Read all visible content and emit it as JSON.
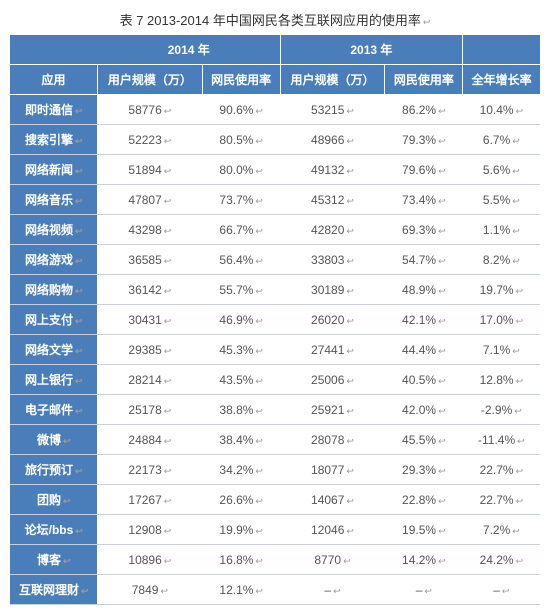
{
  "caption": "表 7    2013-2014 年中国网民各类互联网应用的使用率",
  "header": {
    "top": [
      "",
      "2014 年",
      "2013 年",
      ""
    ],
    "sub": [
      "应用",
      "用户规模（万）",
      "网民使用率",
      "用户规模（万）",
      "网民使用率",
      "全年增长率"
    ]
  },
  "rows": [
    {
      "app": "即时通信",
      "u2014": "58776",
      "r2014": "90.6%",
      "u2013": "53215",
      "r2013": "86.2%",
      "g": "10.4%"
    },
    {
      "app": "搜索引擎",
      "u2014": "52223",
      "r2014": "80.5%",
      "u2013": "48966",
      "r2013": "79.3%",
      "g": "6.7%"
    },
    {
      "app": "网络新闻",
      "u2014": "51894",
      "r2014": "80.0%",
      "u2013": "49132",
      "r2013": "79.6%",
      "g": "5.6%"
    },
    {
      "app": "网络音乐",
      "u2014": "47807",
      "r2014": "73.7%",
      "u2013": "45312",
      "r2013": "73.4%",
      "g": "5.5%"
    },
    {
      "app": "网络视频",
      "u2014": "43298",
      "r2014": "66.7%",
      "u2013": "42820",
      "r2013": "69.3%",
      "g": "1.1%"
    },
    {
      "app": "网络游戏",
      "u2014": "36585",
      "r2014": "56.4%",
      "u2013": "33803",
      "r2013": "54.7%",
      "g": "8.2%"
    },
    {
      "app": "网络购物",
      "u2014": "36142",
      "r2014": "55.7%",
      "u2013": "30189",
      "r2013": "48.9%",
      "g": "19.7%"
    },
    {
      "app": "网上支付",
      "u2014": "30431",
      "r2014": "46.9%",
      "u2013": "26020",
      "r2013": "42.1%",
      "g": "17.0%"
    },
    {
      "app": "网络文学",
      "u2014": "29385",
      "r2014": "45.3%",
      "u2013": "27441",
      "r2013": "44.4%",
      "g": "7.1%"
    },
    {
      "app": "网上银行",
      "u2014": "28214",
      "r2014": "43.5%",
      "u2013": "25006",
      "r2013": "40.5%",
      "g": "12.8%"
    },
    {
      "app": "电子邮件",
      "u2014": "25178",
      "r2014": "38.8%",
      "u2013": "25921",
      "r2013": "42.0%",
      "g": "-2.9%"
    },
    {
      "app": "微博",
      "u2014": "24884",
      "r2014": "38.4%",
      "u2013": "28078",
      "r2013": "45.5%",
      "g": "-11.4%"
    },
    {
      "app": "旅行预订",
      "u2014": "22173",
      "r2014": "34.2%",
      "u2013": "18077",
      "r2013": "29.3%",
      "g": "22.7%"
    },
    {
      "app": "团购",
      "u2014": "17267",
      "r2014": "26.6%",
      "u2013": "14067",
      "r2013": "22.8%",
      "g": "22.7%"
    },
    {
      "app": "论坛/bbs",
      "u2014": "12908",
      "r2014": "19.9%",
      "u2013": "12046",
      "r2013": "19.5%",
      "g": "7.2%"
    },
    {
      "app": "博客",
      "u2014": "10896",
      "r2014": "16.8%",
      "u2013": "8770",
      "r2013": "14.2%",
      "g": "24.2%"
    },
    {
      "app": "互联网理财",
      "u2014": "7849",
      "r2014": "12.1%",
      "u2013": "–",
      "r2013": "–",
      "g": "–"
    }
  ]
}
